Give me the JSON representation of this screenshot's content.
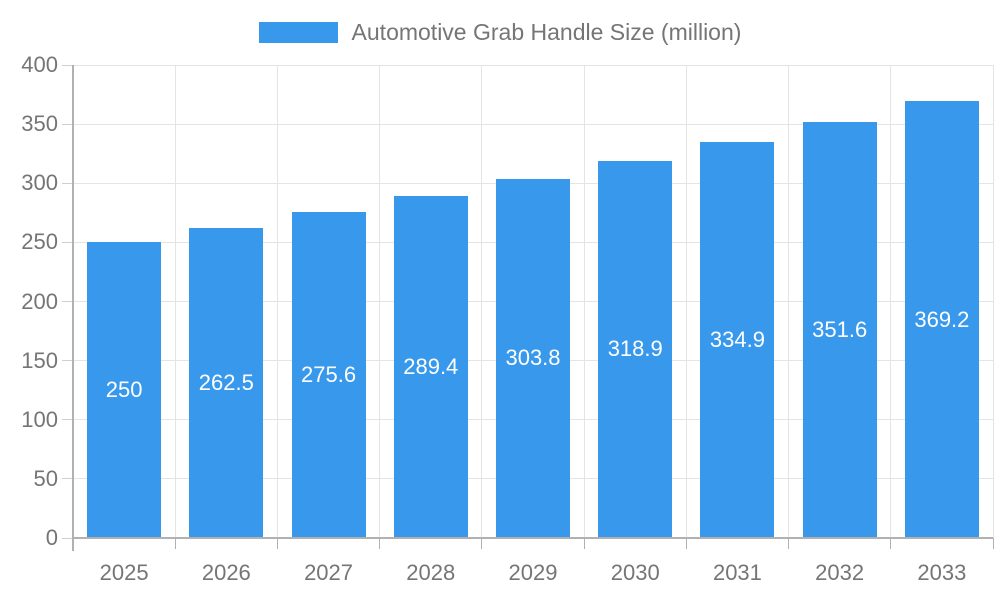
{
  "chart_data": {
    "type": "bar",
    "title": "Automotive Grab Handle Size (million)",
    "categories": [
      "2025",
      "2026",
      "2027",
      "2028",
      "2029",
      "2030",
      "2031",
      "2032",
      "2033"
    ],
    "values": [
      250,
      262.5,
      275.6,
      289.4,
      303.8,
      318.9,
      334.9,
      351.6,
      369.2
    ],
    "xlabel": "",
    "ylabel": "",
    "ylim": [
      0,
      400
    ],
    "ytick_step": 50,
    "ytick_labels": [
      "0",
      "50",
      "100",
      "150",
      "200",
      "250",
      "300",
      "350",
      "400"
    ],
    "grid": true,
    "legend_position": "top-center",
    "colors": {
      "bar": "#3899EC",
      "bar_label": "#FFFFFF",
      "axis_line": "#B1B1B1",
      "gridline": "#E4E4E4",
      "y_tick": "#CFCFCF",
      "tick_label": "#757575",
      "title": "#757575",
      "background": "#FFFFFF"
    }
  }
}
